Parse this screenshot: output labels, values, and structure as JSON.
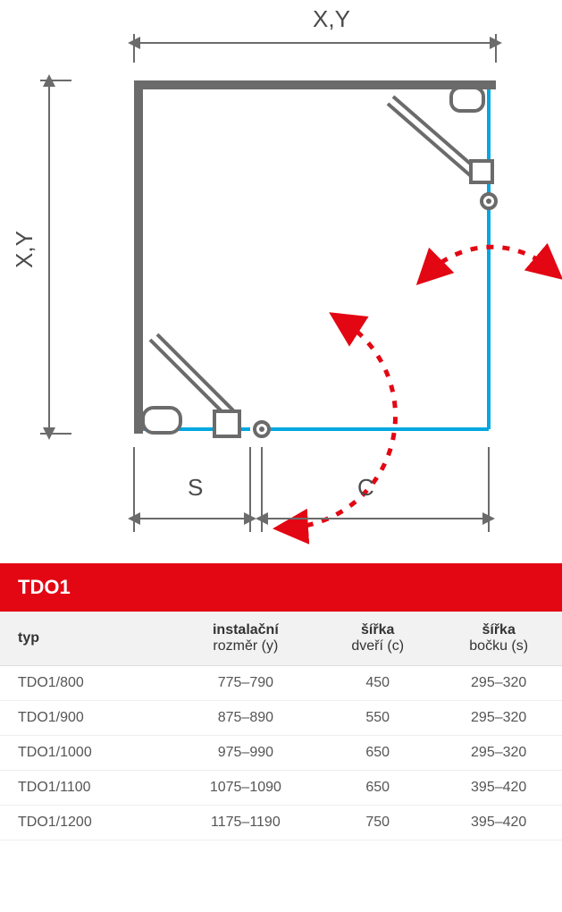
{
  "diagram": {
    "label_top": "X,Y",
    "label_left": "X,Y",
    "label_s": "S",
    "label_c": "C",
    "colors": {
      "outline": "#6b6b6b",
      "glass": "#00a7e1",
      "accent": "#e30613",
      "bg": "#ffffff"
    },
    "stroke_widths": {
      "dim_line": 2,
      "frame": 8,
      "glass": 4,
      "hinge": 4
    }
  },
  "table": {
    "title": "TDO1",
    "columns": [
      {
        "header": "typ",
        "sub": ""
      },
      {
        "header": "instalační",
        "sub": "rozměr (y)"
      },
      {
        "header": "šířka",
        "sub": "dveří (c)"
      },
      {
        "header": "šířka",
        "sub": "bočku (s)"
      }
    ],
    "rows": [
      [
        "TDO1/800",
        "775–790",
        "450",
        "295–320"
      ],
      [
        "TDO1/900",
        "875–890",
        "550",
        "295–320"
      ],
      [
        "TDO1/1000",
        "975–990",
        "650",
        "295–320"
      ],
      [
        "TDO1/1100",
        "1075–1090",
        "650",
        "395–420"
      ],
      [
        "TDO1/1200",
        "1175–1190",
        "750",
        "395–420"
      ]
    ],
    "colors": {
      "title_bg": "#e30613",
      "title_fg": "#ffffff",
      "header_bg": "#f2f2f2",
      "row_border": "#eeeeee",
      "text": "#555555"
    }
  }
}
